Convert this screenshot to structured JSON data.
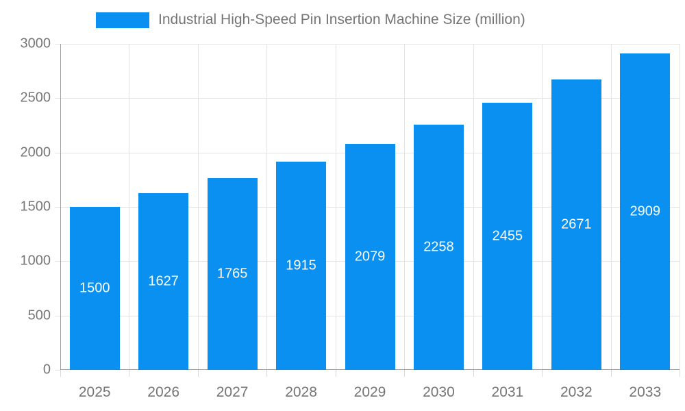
{
  "chart_data": {
    "type": "bar",
    "title": "Industrial High-Speed Pin Insertion Machine Size (million)",
    "categories": [
      "2025",
      "2026",
      "2027",
      "2028",
      "2029",
      "2030",
      "2031",
      "2032",
      "2033"
    ],
    "values": [
      1500,
      1627,
      1765,
      1915,
      2079,
      2258,
      2455,
      2671,
      2909
    ],
    "xlabel": "",
    "ylabel": "",
    "ylim": [
      0,
      3000
    ],
    "yticks": [
      0,
      500,
      1000,
      1500,
      2000,
      2500,
      3000
    ],
    "grid": true,
    "legend_position": "top-left",
    "bar_labels_inside": true,
    "colors": {
      "bar": "#0a90f0",
      "bar_label": "#ffffff",
      "axis_text": "#757575",
      "axis_line": "#9e9e9e",
      "gridline": "#e3e3e3",
      "tick": "#d9d9d9",
      "background": "#ffffff"
    }
  }
}
